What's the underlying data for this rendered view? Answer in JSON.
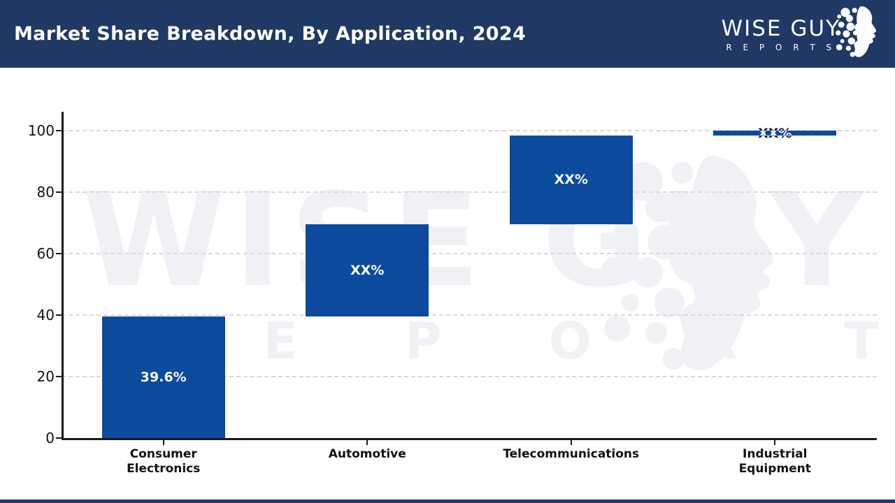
{
  "header": {
    "title": "Market Share Breakdown, By Application, 2024",
    "logo": {
      "line1": "WISE GUY",
      "line2": "R E P O R T S"
    }
  },
  "watermark": {
    "line1": "WISE GUY",
    "line2": "R E P O R T S"
  },
  "chart_data": {
    "type": "bar",
    "subtype": "waterfall-segments",
    "title": "Market Share Breakdown, By Application, 2024",
    "categories": [
      "Consumer Electronics",
      "Automotive",
      "Telecommunications",
      "Industrial Equipment"
    ],
    "category_label_lines": [
      [
        "Consumer",
        "Electronics"
      ],
      [
        "Automotive"
      ],
      [
        "Telecommunications"
      ],
      [
        "Industrial",
        "Equipment"
      ]
    ],
    "segments": [
      {
        "category": "Consumer Electronics",
        "start": 0,
        "end": 39.6,
        "label": "39.6%"
      },
      {
        "category": "Automotive",
        "start": 39.6,
        "end": 69.6,
        "label": "XX%"
      },
      {
        "category": "Telecommunications",
        "start": 69.6,
        "end": 98.4,
        "label": "XX%"
      },
      {
        "category": "Industrial Equipment",
        "start": 98.4,
        "end": 100,
        "label": "XX%"
      }
    ],
    "xlabel": "",
    "ylabel": "",
    "ylim": [
      0,
      100
    ],
    "yticks": [
      0,
      20,
      40,
      60,
      80,
      100
    ],
    "grid": "horizontal-dashed",
    "legend": "none",
    "bar_color": "#0c4a9e",
    "value_label_color": "#ffffff"
  },
  "colors": {
    "header_navy": "#1f3864",
    "bar_blue": "#0c4a9e",
    "watermark_gray": "#f0f1f4",
    "grid_gray": "#d9d9d9",
    "axis_dark": "#1a1a1a",
    "tick_text": "#111111"
  }
}
